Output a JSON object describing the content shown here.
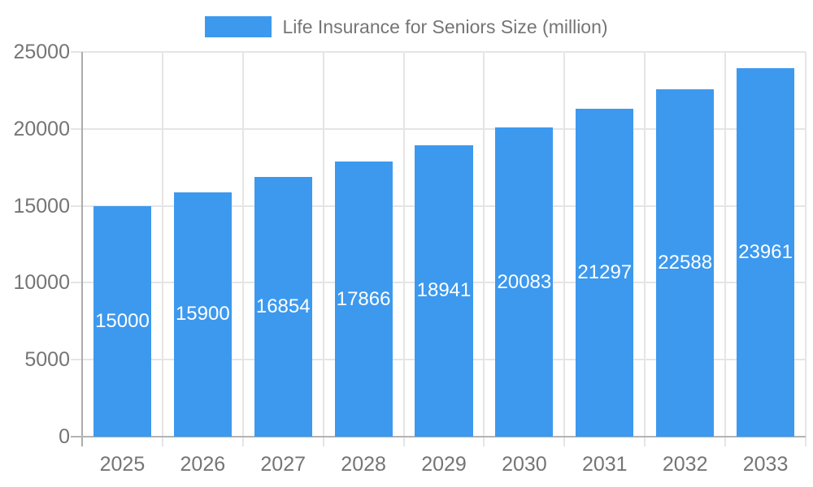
{
  "chart_data": {
    "type": "bar",
    "title": "Life Insurance for Seniors Size (million)",
    "categories": [
      "2025",
      "2026",
      "2027",
      "2028",
      "2029",
      "2030",
      "2031",
      "2032",
      "2033"
    ],
    "values": [
      15000,
      15900,
      16854,
      17866,
      18941,
      20083,
      21297,
      22588,
      23961
    ],
    "series": [
      {
        "name": "Life Insurance for Seniors Size (million)",
        "values": [
          15000,
          15900,
          16854,
          17866,
          18941,
          20083,
          21297,
          22588,
          23961
        ]
      }
    ],
    "xlabel": "",
    "ylabel": "",
    "ylim": [
      0,
      25000
    ],
    "ytick_step": 5000,
    "ytick_labels": [
      "25000",
      "20000",
      "15000",
      "10000",
      "5000",
      "0"
    ],
    "grid": true,
    "legend_position": "top",
    "bar_color": "#3D99EE",
    "value_label_color": "#FFFFFF",
    "axis_text_color": "#757575",
    "gridline_color": "#E5E5E5",
    "axis_line_color": "#ACACAC"
  }
}
